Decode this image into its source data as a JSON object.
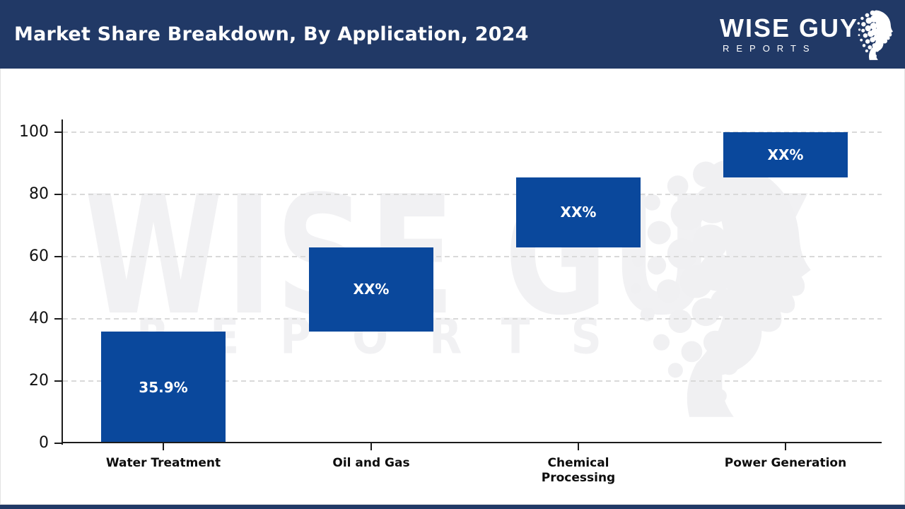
{
  "header": {
    "title": "Market Share Breakdown, By Application, 2024",
    "logo": {
      "line1": "WISE GUY",
      "line2": "REPORTS"
    }
  },
  "watermark": {
    "line1": "WISE GUY",
    "line2": "REPORTS"
  },
  "chart_data": {
    "type": "bar",
    "subtype": "floating-waterfall",
    "title": "Market Share Breakdown, By Application, 2024",
    "categories": [
      "Water Treatment",
      "Oil and Gas",
      "Chemical\nProcessing",
      "Power Generation"
    ],
    "segments": [
      {
        "category": "Water Treatment",
        "start": 0,
        "end": 35.9,
        "label": "35.9%"
      },
      {
        "category": "Oil and Gas",
        "start": 35.9,
        "end": 63.0,
        "label": "XX%"
      },
      {
        "category": "Chemical Processing",
        "start": 63.0,
        "end": 85.5,
        "label": "XX%"
      },
      {
        "category": "Power Generation",
        "start": 85.5,
        "end": 100.0,
        "label": "XX%"
      }
    ],
    "xlabel": "",
    "ylabel": "",
    "ylim": [
      0,
      100
    ],
    "yticks": [
      0,
      20,
      40,
      60,
      80,
      100
    ],
    "grid": "horizontal dashed",
    "legend": "none",
    "bar_color": "#0a489c",
    "bar_label_color": "#ffffff"
  },
  "colors": {
    "header_bg": "#213966",
    "footer_bg": "#213966",
    "axis": "#1c1c1c",
    "gridline": "#d9d9d9",
    "watermark": "#f1f1f3",
    "title_text": "#ffffff"
  }
}
